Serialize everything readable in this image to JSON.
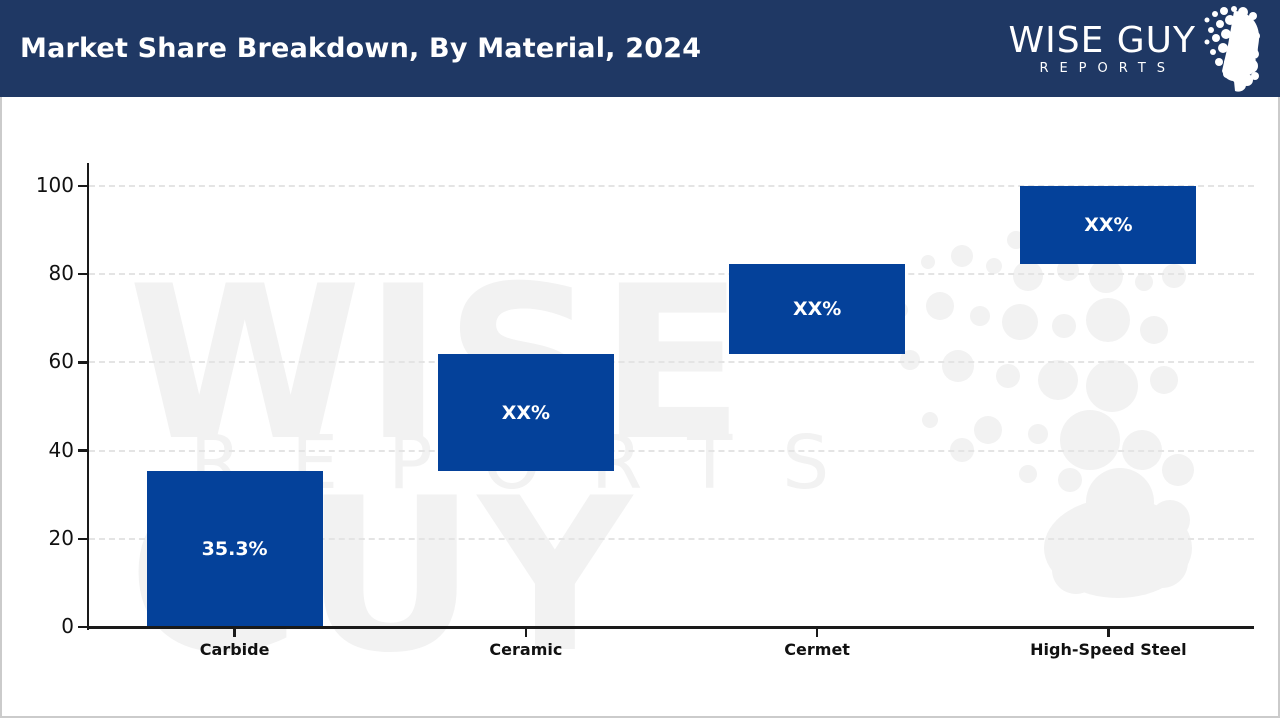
{
  "header": {
    "title": "Market Share Breakdown, By Material, 2024",
    "logo": {
      "line1": "WISE GUY",
      "line2": "REPORTS"
    }
  },
  "watermark": {
    "line1": "WISE GUY",
    "line2": "REPORTS"
  },
  "chart_data": {
    "type": "bar",
    "subtype": "waterfall",
    "title": "Market Share Breakdown, By Material, 2024",
    "xlabel": "",
    "ylabel": "",
    "categories": [
      "Carbide",
      "Ceramic",
      "Cermet",
      "High-Speed Steel"
    ],
    "segments": [
      {
        "category": "Carbide",
        "start": 0,
        "end": 35.3,
        "label": "35.3%"
      },
      {
        "category": "Ceramic",
        "start": 35.3,
        "end": 61.8,
        "label": "XX%"
      },
      {
        "category": "Cermet",
        "start": 61.8,
        "end": 82.3,
        "label": "XX%"
      },
      {
        "category": "High-Speed Steel",
        "start": 82.3,
        "end": 100,
        "label": "XX%"
      }
    ],
    "yticks": [
      0,
      20,
      40,
      60,
      80,
      100
    ],
    "ylim": [
      0,
      105
    ],
    "grid": true,
    "grid_style": "dashed",
    "legend": false
  },
  "colors": {
    "header_bg": "#1f3864",
    "bar": "#04419a",
    "axis": "#1a1a1a",
    "grid": "#e4e4e4",
    "bar_label": "#ffffff",
    "tick_label": "#111111",
    "watermark": "#f2f2f2",
    "frame_border": "#cbcbcb"
  }
}
